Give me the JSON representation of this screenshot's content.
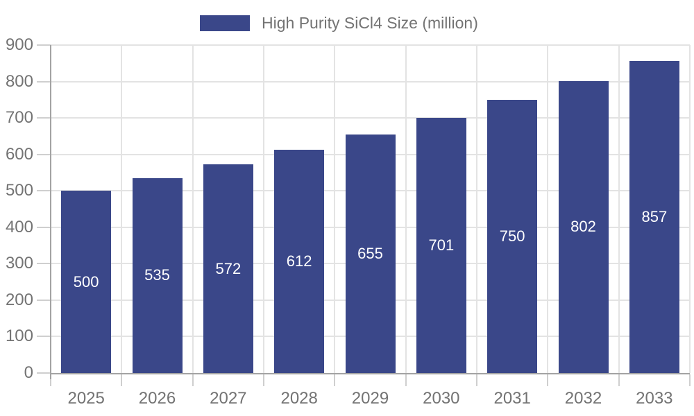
{
  "legend": {
    "label": "High Purity SiCl4 Size (million)"
  },
  "chart_data": {
    "type": "bar",
    "title": "High Purity SiCl4 Size (million)",
    "categories": [
      "2025",
      "2026",
      "2027",
      "2028",
      "2029",
      "2030",
      "2031",
      "2032",
      "2033"
    ],
    "series": [
      {
        "name": "High Purity SiCl4 Size (million)",
        "values": [
          500,
          535,
          572,
          612,
          655,
          701,
          750,
          802,
          857
        ]
      }
    ],
    "xlabel": "",
    "ylabel": "",
    "ylim": [
      0,
      900
    ],
    "ytick_step": 100,
    "yticks": [
      0,
      100,
      200,
      300,
      400,
      500,
      600,
      700,
      800,
      900
    ],
    "grid": true,
    "legend_position": "top-center",
    "value_labels": "centered-white",
    "colors": {
      "bar": "#3A4789",
      "grid": "#E3E3E3",
      "axis": "#A3A3A3",
      "tick": "#CFCFCF",
      "label": "#737373",
      "value_label": "#FFFFFF",
      "background": "#FFFFFF"
    }
  }
}
